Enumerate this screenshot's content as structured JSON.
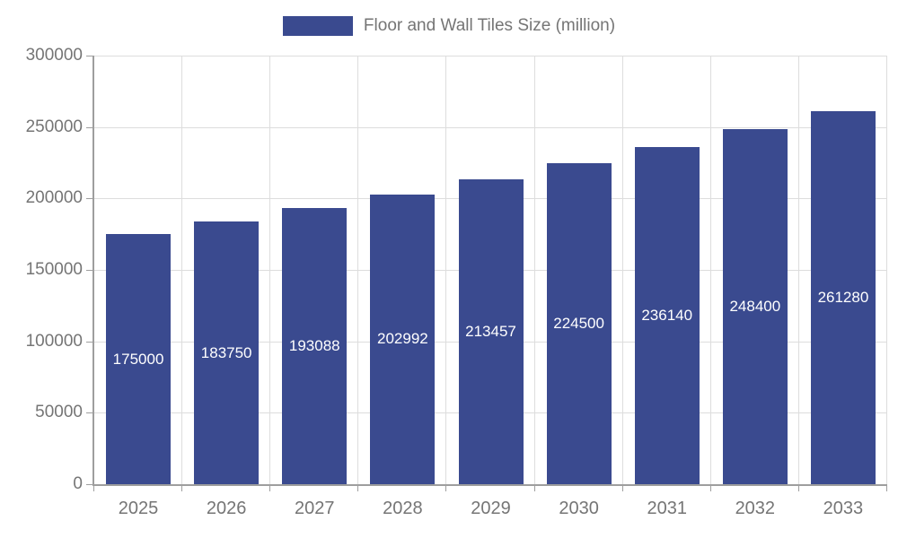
{
  "legend": {
    "label": "Floor and Wall Tiles Size (million)"
  },
  "colors": {
    "bar": "#3A4A8F",
    "bar_label": "#FFFFFF",
    "axis_label": "#757575",
    "grid": "#DDDDDD",
    "axis_line": "#9E9E9E",
    "background": "#FFFFFF"
  },
  "chart_data": {
    "type": "bar",
    "title": "Floor and Wall Tiles Size (million)",
    "categories": [
      "2025",
      "2026",
      "2027",
      "2028",
      "2029",
      "2030",
      "2031",
      "2032",
      "2033"
    ],
    "values": [
      175000,
      183750,
      193088,
      202992,
      213457,
      224500,
      236140,
      248400,
      261280
    ],
    "xlabel": "",
    "ylabel": "",
    "ylim": [
      0,
      300000
    ],
    "yticks": [
      0,
      50000,
      100000,
      150000,
      200000,
      250000,
      300000
    ],
    "grid": true,
    "legend_position": "top-center",
    "bar_value_labels": "inside-center"
  }
}
